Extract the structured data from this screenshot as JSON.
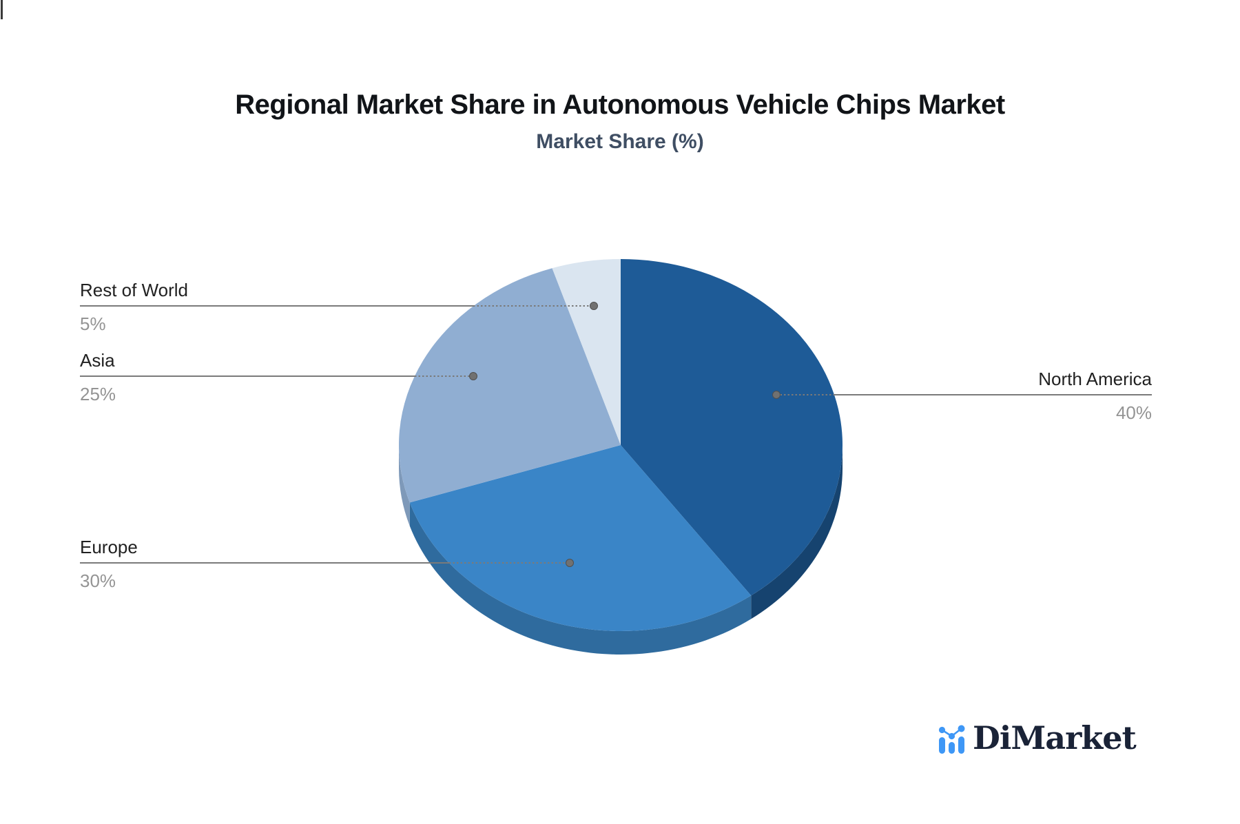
{
  "header": {
    "title": "Regional Market Share in Autonomous Vehicle Chips Market",
    "subtitle": "Market Share (%)"
  },
  "chart_data": {
    "type": "pie",
    "title": "Regional Market Share in Autonomous Vehicle Chips Market",
    "subtitle": "Market Share (%)",
    "unit": "%",
    "effect": "3d",
    "start_angle": "top",
    "direction": "clockwise",
    "slices": [
      {
        "label": "North America",
        "value": 40,
        "pct_text": "40%",
        "color": "#1E5B97",
        "side_color": "#16436F",
        "label_side": "right"
      },
      {
        "label": "Europe",
        "value": 30,
        "pct_text": "30%",
        "color": "#3A85C7",
        "side_color": "#2F6B9E",
        "label_side": "left"
      },
      {
        "label": "Asia",
        "value": 25,
        "pct_text": "25%",
        "color": "#90AED2",
        "side_color": "#7E99B9",
        "label_side": "left"
      },
      {
        "label": "Rest of World",
        "value": 5,
        "pct_text": "5%",
        "color": "#DAE5F0",
        "side_color": "#C3D3E5",
        "label_side": "left"
      }
    ],
    "legend": "none",
    "leader_line_color": "#7A7A7A",
    "label_text_color": "#212121",
    "value_text_color": "#949494"
  },
  "branding": {
    "logo_text": "DiMarket",
    "logo_icon": "bar-line-chart-icon",
    "logo_icon_color": "#3E97F6",
    "logo_text_color": "#1A2337"
  }
}
